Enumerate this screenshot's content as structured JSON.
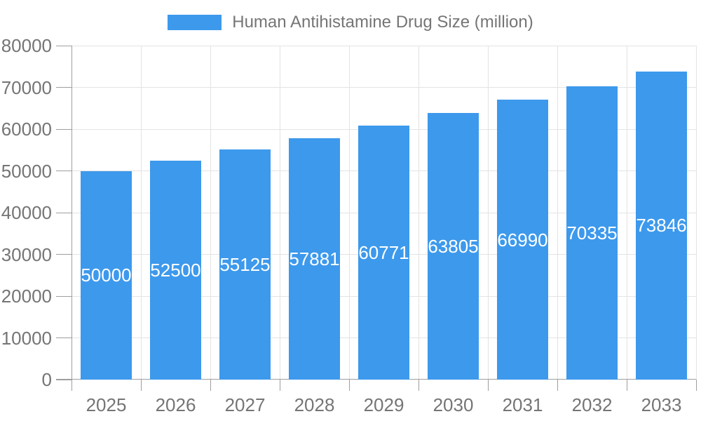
{
  "colors": {
    "bar": "#3D99EC",
    "gridline": "#E3E3E3",
    "axis": "#9E9E9E",
    "text": "#757575",
    "value_label": "#FFFFFF",
    "background": "#FFFFFF"
  },
  "legend": {
    "series_label": "Human Antihistamine Drug Size (million)"
  },
  "chart_data": {
    "type": "bar",
    "title": "Human Antihistamine Drug Size (million)",
    "categories": [
      "2025",
      "2026",
      "2027",
      "2028",
      "2029",
      "2030",
      "2031",
      "2032",
      "2033"
    ],
    "values": [
      50000,
      52500,
      55125,
      57881,
      60771,
      63805,
      66990,
      70335,
      73846
    ],
    "xlabel": "",
    "ylabel": "",
    "ylim": [
      0,
      80000
    ],
    "yticks": [
      0,
      10000,
      20000,
      30000,
      40000,
      50000,
      60000,
      70000,
      80000
    ],
    "grid": true,
    "legend_position": "top-center",
    "value_label_position": "inside-center",
    "value_label_color": "#FFFFFF"
  }
}
